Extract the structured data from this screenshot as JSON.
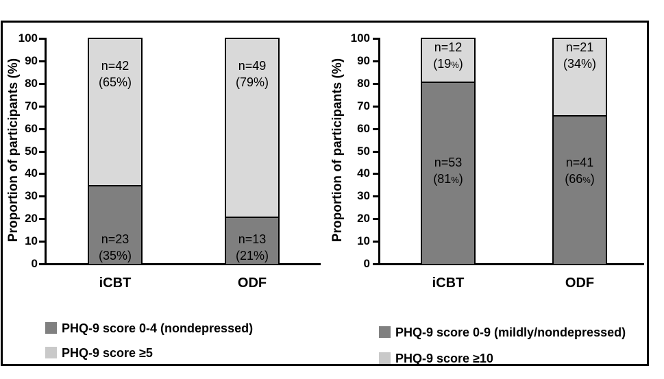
{
  "background": "#ffffff",
  "frame_color": "#000000",
  "axis_color": "#000000",
  "chart_data": [
    {
      "type": "bar",
      "stacked": true,
      "title": "",
      "xlabel": "",
      "ylabel": "Proportion of participants (%)",
      "ylim": [
        0,
        100
      ],
      "yticks": [
        0,
        10,
        20,
        30,
        40,
        50,
        60,
        70,
        80,
        90,
        100
      ],
      "grid": false,
      "legend_position": "bottom-left",
      "categories": [
        "iCBT",
        "ODF"
      ],
      "series": [
        {
          "name": "PHQ-9 score 0-4 (nondepressed)",
          "values": [
            35,
            21
          ],
          "counts": [
            23,
            13
          ],
          "fill": "#7f7f7f",
          "legend_fill": "#808080"
        },
        {
          "name": "PHQ-9 score ≥5",
          "values": [
            65,
            79
          ],
          "counts": [
            42,
            49
          ],
          "fill": "#d9d9d9",
          "legend_fill": "#c9c9c9"
        }
      ],
      "bar_labels": [
        {
          "category": "iCBT",
          "series": 1,
          "lines": [
            "n=42",
            "(65%)"
          ],
          "small_pct": false,
          "center_value": 84
        },
        {
          "category": "ODF",
          "series": 1,
          "lines": [
            "n=49",
            "(79%)"
          ],
          "small_pct": false,
          "center_value": 84
        },
        {
          "category": "iCBT",
          "series": 0,
          "lines": [
            "n=23",
            "(35%)"
          ],
          "small_pct": false,
          "center_value": 7
        },
        {
          "category": "ODF",
          "series": 0,
          "lines": [
            "n=13",
            "(21%)"
          ],
          "small_pct": false,
          "center_value": 7
        }
      ]
    },
    {
      "type": "bar",
      "stacked": true,
      "title": "",
      "xlabel": "",
      "ylabel": "Proportion of participants (%)",
      "ylim": [
        0,
        100
      ],
      "yticks": [
        0,
        10,
        20,
        30,
        40,
        50,
        60,
        70,
        80,
        90,
        100
      ],
      "grid": false,
      "legend_position": "bottom-left",
      "categories": [
        "iCBT",
        "ODF"
      ],
      "series": [
        {
          "name": "PHQ-9 score 0-9 (mildly/nondepressed)",
          "values": [
            81,
            66
          ],
          "counts": [
            53,
            41
          ],
          "fill": "#7f7f7f",
          "legend_fill": "#808080"
        },
        {
          "name": "PHQ-9 score ≥10",
          "values": [
            19,
            34
          ],
          "counts": [
            12,
            21
          ],
          "fill": "#d9d9d9",
          "legend_fill": "#c9c9c9"
        }
      ],
      "bar_labels": [
        {
          "category": "iCBT",
          "series": 1,
          "lines": [
            "n=12",
            "(19%)"
          ],
          "small_pct": true,
          "center_value": 92
        },
        {
          "category": "ODF",
          "series": 1,
          "lines": [
            "n=21",
            "(34%)"
          ],
          "small_pct": false,
          "center_value": 92
        },
        {
          "category": "iCBT",
          "series": 0,
          "lines": [
            "n=53",
            "(81%)"
          ],
          "small_pct": true,
          "center_value": 41
        },
        {
          "category": "ODF",
          "series": 0,
          "lines": [
            "n=41",
            "(66%)"
          ],
          "small_pct": true,
          "center_value": 41
        }
      ]
    }
  ]
}
